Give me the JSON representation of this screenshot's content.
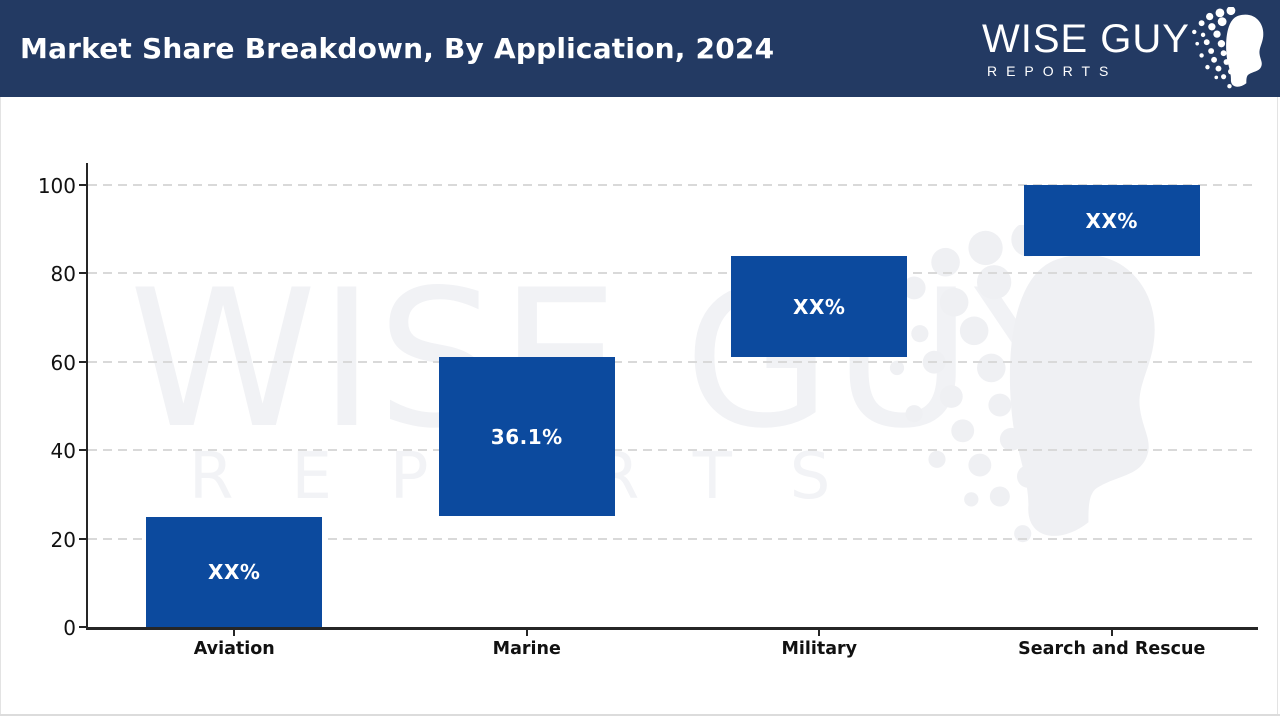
{
  "header": {
    "title": "Market Share Breakdown, By Application, 2024",
    "logo": {
      "line1": "WISE GUY",
      "line2": "REPORTS"
    }
  },
  "watermark": {
    "line1": "WISE GUY",
    "line2": "REPORTS"
  },
  "chart_data": {
    "type": "bar",
    "subtype": "floating-waterfall",
    "title": "Market Share Breakdown, By Application, 2024",
    "categories": [
      "Aviation",
      "Marine",
      "Military",
      "Search and Rescue"
    ],
    "segments": [
      {
        "category": "Aviation",
        "start": 0,
        "end": 25,
        "value_label": "XX%"
      },
      {
        "category": "Marine",
        "start": 25,
        "end": 61.1,
        "value_label": "36.1%"
      },
      {
        "category": "Military",
        "start": 61.1,
        "end": 83.9,
        "value_label": "XX%"
      },
      {
        "category": "Search and Rescue",
        "start": 83.9,
        "end": 100,
        "value_label": "XX%"
      }
    ],
    "yticks": [
      0,
      20,
      40,
      60,
      80,
      100
    ],
    "ylim": [
      0,
      105
    ],
    "xlabel": "",
    "ylabel": "",
    "grid": true,
    "grid_style": "dashed",
    "legend": false,
    "bar_color": "#0c4a9e",
    "value_label_color": "#ffffff"
  },
  "colors": {
    "header_bg": "#233a63",
    "bar": "#0c4a9e",
    "grid": "#d9d9d9",
    "axis": "#262626",
    "text": "#111111",
    "watermark": "#f1f2f5",
    "divider": "#dcdcdc"
  }
}
